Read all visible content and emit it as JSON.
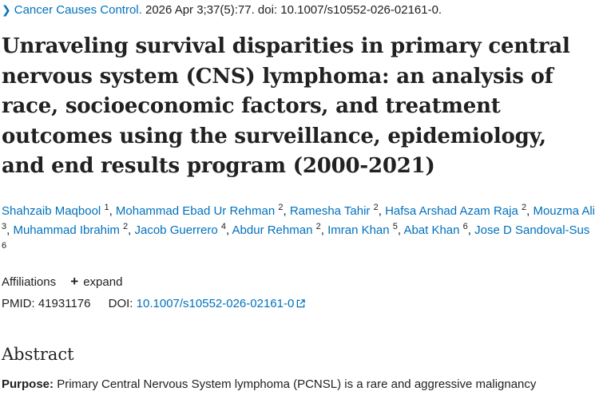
{
  "citation": {
    "journal": "Cancer Causes Control.",
    "details": "2026 Apr 3;37(5):77. doi: 10.1007/s10552-026-02161-0."
  },
  "title": "Unraveling survival disparities in primary central nervous system (CNS) lymphoma: an analysis of race, socioeconomic factors, and treatment outcomes using the surveillance, epidemiology, and end results program (2000-2021)",
  "authors": [
    {
      "name": "Shahzaib Maqbool",
      "aff": "1"
    },
    {
      "name": "Mohammad Ebad Ur Rehman",
      "aff": "2"
    },
    {
      "name": "Ramesha Tahir",
      "aff": "2"
    },
    {
      "name": "Hafsa Arshad Azam Raja",
      "aff": "2"
    },
    {
      "name": "Mouzma Ali",
      "aff": "3"
    },
    {
      "name": "Muhammad Ibrahim",
      "aff": "2"
    },
    {
      "name": "Jacob Guerrero",
      "aff": "4"
    },
    {
      "name": "Abdur Rehman",
      "aff": "2"
    },
    {
      "name": "Imran Khan",
      "aff": "5"
    },
    {
      "name": "Abat Khan",
      "aff": "6"
    },
    {
      "name": "Jose D Sandoval-Sus",
      "aff": "6"
    }
  ],
  "affiliations": {
    "label": "Affiliations",
    "expand_label": "expand"
  },
  "identifiers": {
    "pmid_label": "PMID:",
    "pmid": "41931176",
    "doi_label": "DOI:",
    "doi": "10.1007/s10552-026-02161-0"
  },
  "abstract": {
    "heading": "Abstract",
    "purpose_label": "Purpose:",
    "purpose_text": "Primary Central Nervous System lymphoma (PCNSL) is a rare and aggressive malignancy"
  },
  "colors": {
    "link": "#0071bc",
    "text": "#212121"
  }
}
